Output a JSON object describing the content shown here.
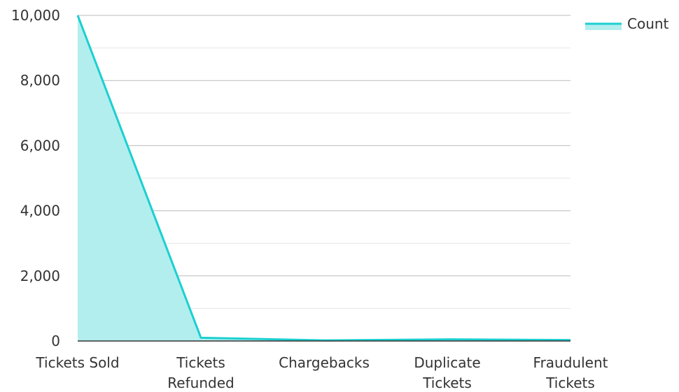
{
  "chart_data": {
    "type": "area",
    "categories": [
      [
        "Tickets Sold"
      ],
      [
        "Tickets",
        "Refunded"
      ],
      [
        "Chargebacks"
      ],
      [
        "Duplicate",
        "Tickets"
      ],
      [
        "Fraudulent",
        "Tickets"
      ]
    ],
    "series": [
      {
        "name": "Count",
        "values": [
          10000,
          100,
          20,
          50,
          30
        ]
      }
    ],
    "y_ticks": [
      "0",
      "2,000",
      "4,000",
      "6,000",
      "8,000",
      "10,000"
    ],
    "y_tick_values": [
      0,
      2000,
      4000,
      6000,
      8000,
      10000
    ],
    "ylim": [
      0,
      10000
    ],
    "grid": true,
    "minor_grid": true,
    "legend_position": "top-right",
    "colors": {
      "line": "#1ccfd0",
      "fill": "#b2eeee",
      "grid_major": "#bbbbbb",
      "grid_minor": "#e6e6e6",
      "axis": "#333333"
    }
  }
}
